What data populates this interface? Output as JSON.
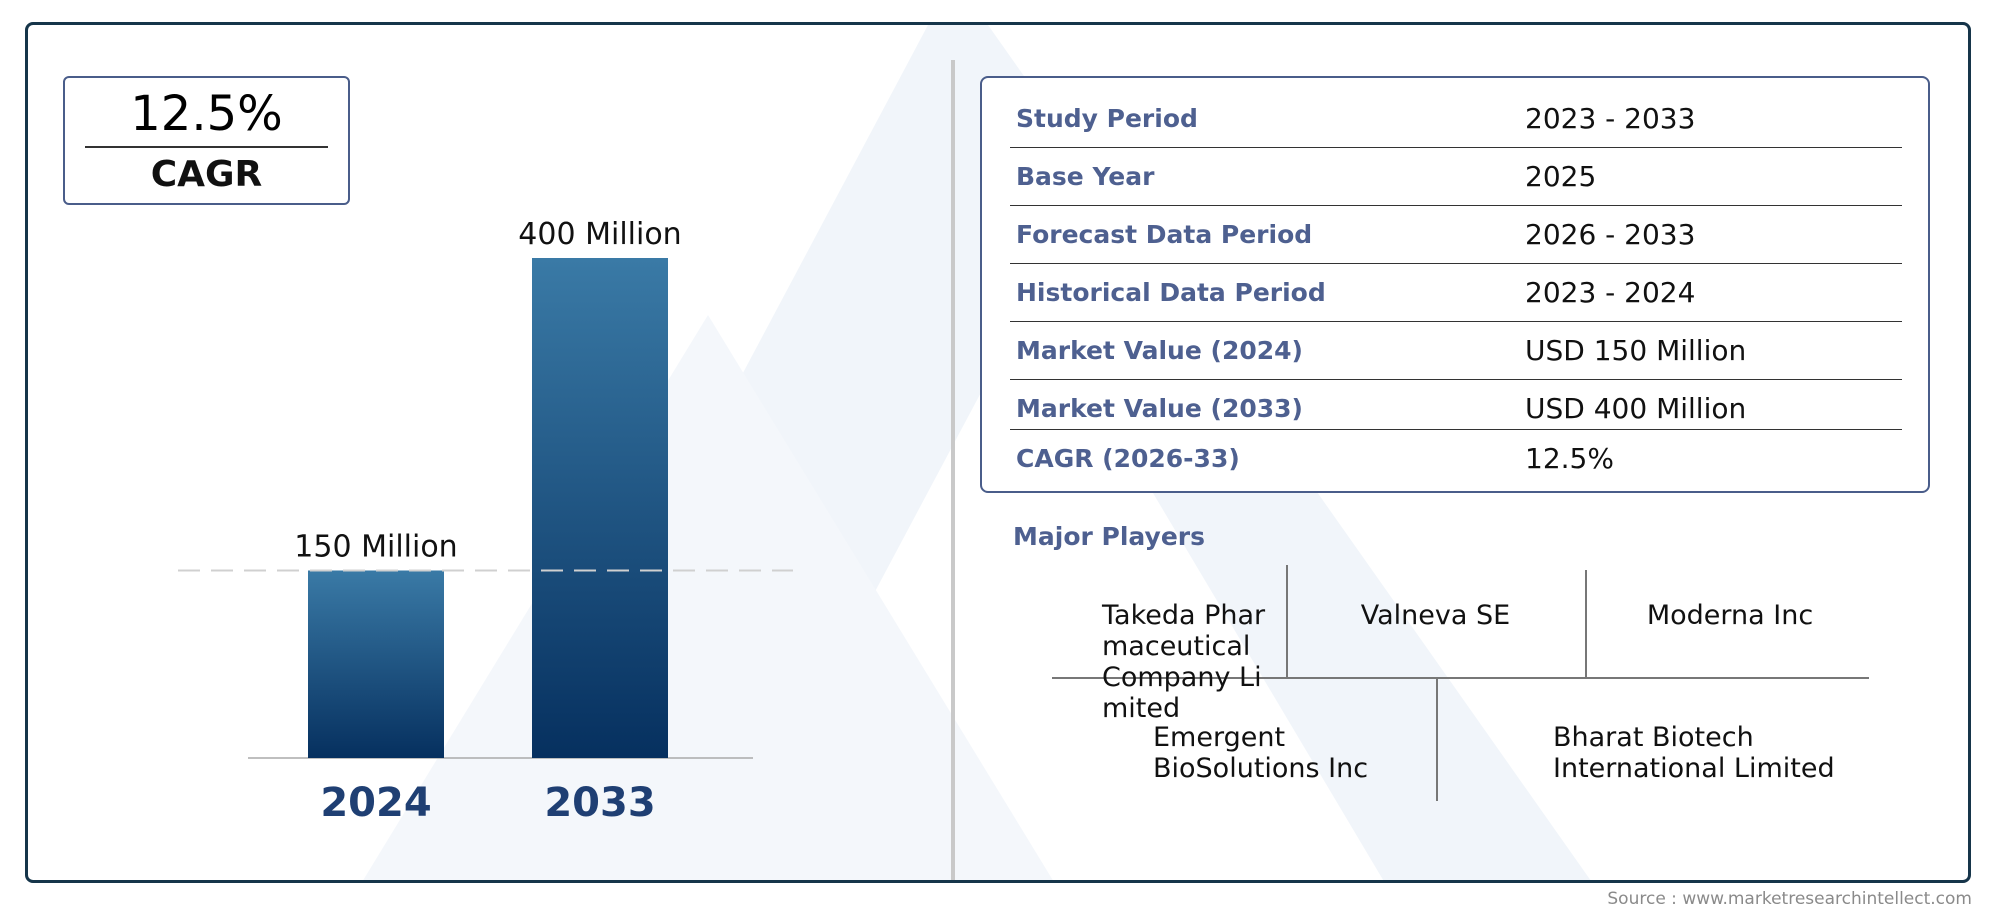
{
  "cagr_box": {
    "value": "12.5%",
    "label": "CAGR"
  },
  "chart_data": {
    "type": "bar",
    "categories": [
      "2024",
      "2033"
    ],
    "values": [
      150,
      400
    ],
    "value_labels": [
      "150 Million",
      "400 Million"
    ],
    "title": "",
    "xlabel": "",
    "ylabel": "",
    "ylim": [
      0,
      400
    ],
    "grid": false,
    "reference_line": {
      "value": 150,
      "style": "dashed"
    }
  },
  "info_table": {
    "rows": [
      {
        "label": "Study Period",
        "value": "2023 - 2033"
      },
      {
        "label": "Base Year",
        "value": "2025"
      },
      {
        "label": "Forecast Data Period",
        "value": "2026 - 2033"
      },
      {
        "label": "Historical Data Period",
        "value": "2023 - 2024"
      },
      {
        "label": "Market Value (2024)",
        "value": "USD 150 Million"
      },
      {
        "label": "Market Value (2033)",
        "value": "USD 400 Million"
      },
      {
        "label": "CAGR (2026-33)",
        "value": "12.5%"
      }
    ]
  },
  "players": {
    "title": "Major Players",
    "items": [
      "Takeda Pharmaceutical Company Limited",
      "Valneva SE",
      "Moderna Inc",
      "Emergent BioSolutions Inc",
      "Bharat Biotech International Limited"
    ]
  },
  "source": "Source : www.marketresearchintellect.com",
  "colors": {
    "bar_top": "#3a7aa6",
    "bar_bottom": "#06305f",
    "accent": "#4e6090",
    "frame": "#16354a"
  }
}
